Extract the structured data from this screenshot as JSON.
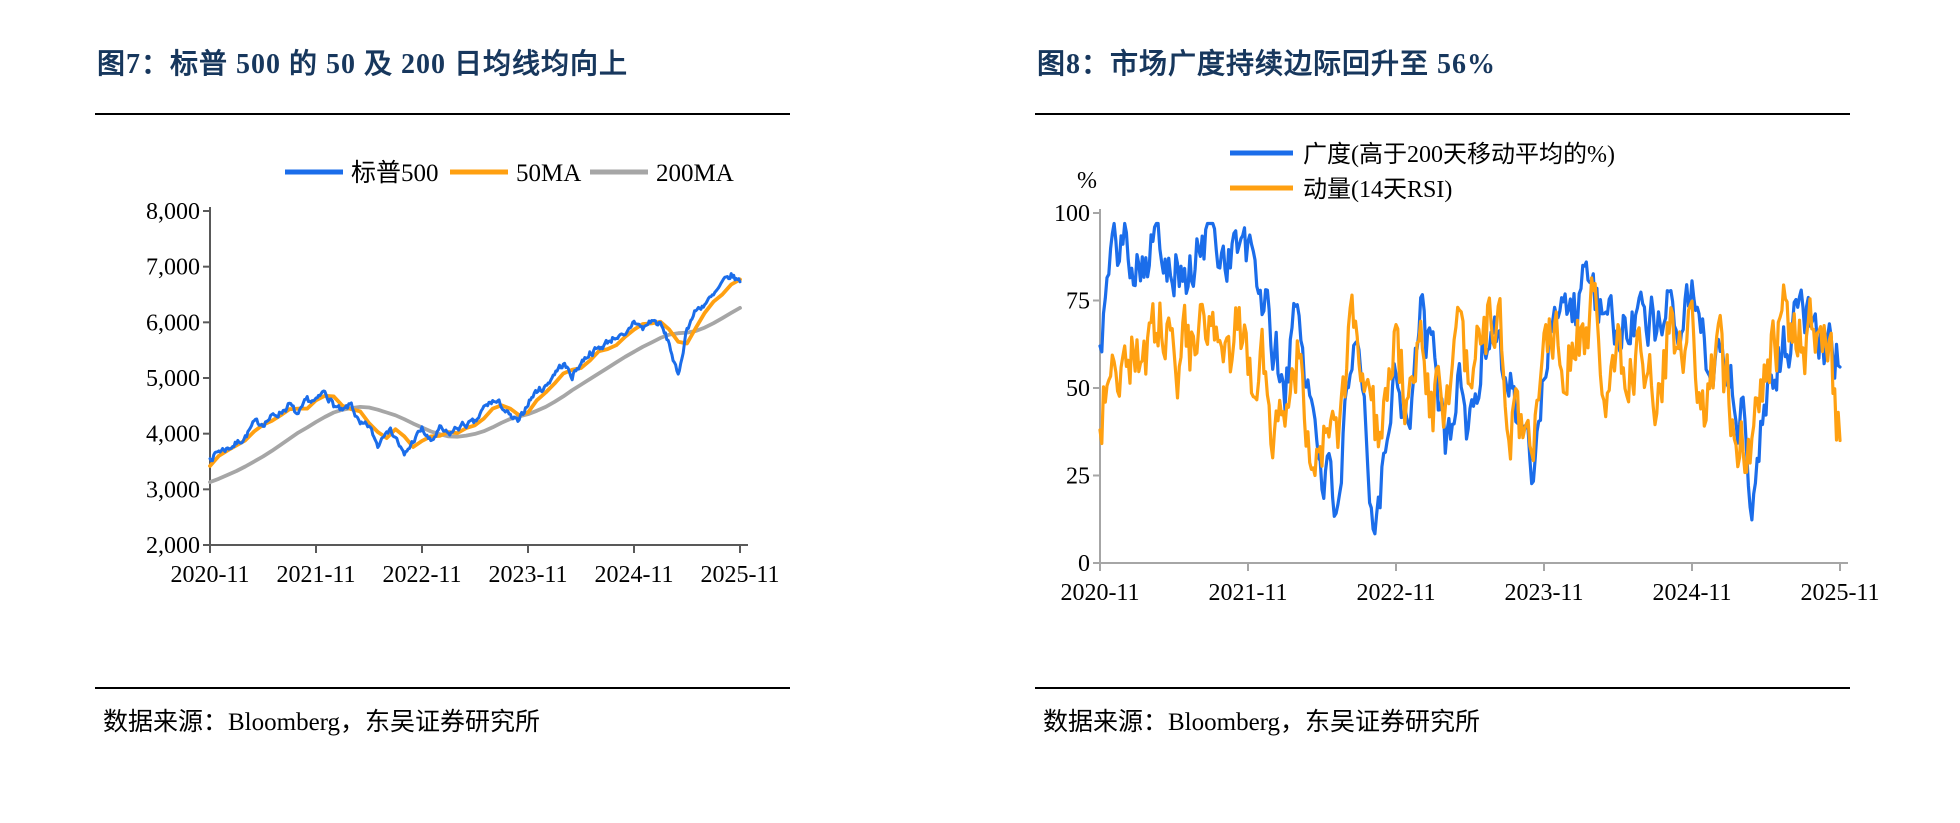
{
  "page": {
    "background": "#FFFFFF"
  },
  "figures": [
    {
      "id": "fig7",
      "title": "图7：标普 500 的 50 及 200 日均线均向上",
      "source": "数据来源：Bloomberg，东吴证券研究所"
    },
    {
      "id": "fig8",
      "title": "图8：市场广度持续边际回升至 56%",
      "source": "数据来源：Bloomberg，东吴证券研究所"
    }
  ],
  "colors": {
    "title_navy": "#17375D",
    "sp500_blue": "#1B6DEA",
    "ma50_orange": "#FFA011",
    "ma200_gray": "#A6A6A6",
    "breadth_blue": "#1B6DEA",
    "momentum_orange": "#FFA011",
    "axis_dark": "#595959",
    "axis_light": "#A6A6A6",
    "text_black": "#000000",
    "rule_black": "#000000"
  },
  "chart_data": [
    {
      "type": "line",
      "title": "图7：标普 500 的 50 及 200 日均线均向上",
      "x_start": "2020-11",
      "x_end": "2025-11",
      "x_frequency": "monthly",
      "x_tick_labels": [
        "2020-11",
        "2021-11",
        "2022-11",
        "2023-11",
        "2024-11",
        "2025-11"
      ],
      "y_tick_labels": [
        "2,000",
        "3,000",
        "4,000",
        "5,000",
        "6,000",
        "7,000",
        "8,000"
      ],
      "ylim": [
        2000,
        8000
      ],
      "grid": false,
      "legend_position": "top-center",
      "series": [
        {
          "name": "标普500",
          "color_key": "sp500_blue",
          "values": [
            3550,
            3695,
            3740,
            3825,
            3950,
            4180,
            4200,
            4300,
            4390,
            4520,
            4310,
            4600,
            4570,
            4766,
            4515,
            4375,
            4530,
            4130,
            4130,
            3785,
            4130,
            3955,
            3585,
            3870,
            4080,
            3840,
            4077,
            3970,
            4109,
            4169,
            4180,
            4450,
            4589,
            4508,
            4288,
            4194,
            4568,
            4770,
            4846,
            5096,
            5254,
            5036,
            5278,
            5460,
            5522,
            5648,
            5762,
            5705,
            6032,
            5882,
            6041,
            5955,
            5612,
            5000,
            5912,
            6205,
            6340,
            6460,
            6690,
            6840,
            6728
          ],
          "jitter": 110
        },
        {
          "name": "50MA",
          "color_key": "ma50_orange",
          "values": [
            3420,
            3600,
            3700,
            3790,
            3880,
            4040,
            4160,
            4230,
            4330,
            4440,
            4450,
            4450,
            4600,
            4680,
            4670,
            4500,
            4440,
            4400,
            4190,
            4030,
            3920,
            4080,
            3950,
            3760,
            3870,
            3950,
            3960,
            4030,
            4010,
            4100,
            4150,
            4270,
            4450,
            4510,
            4450,
            4330,
            4380,
            4600,
            4740,
            4900,
            5080,
            5150,
            5180,
            5310,
            5480,
            5520,
            5590,
            5740,
            5870,
            5970,
            5980,
            6010,
            5870,
            5650,
            5620,
            5900,
            6170,
            6370,
            6500,
            6680,
            6770
          ],
          "jitter": 0
        },
        {
          "name": "200MA",
          "color_key": "ma200_gray",
          "values": [
            3130,
            3190,
            3260,
            3330,
            3410,
            3500,
            3590,
            3690,
            3800,
            3910,
            4020,
            4110,
            4210,
            4300,
            4380,
            4430,
            4460,
            4480,
            4470,
            4430,
            4380,
            4330,
            4260,
            4180,
            4110,
            4040,
            3990,
            3950,
            3945,
            3965,
            3995,
            4045,
            4115,
            4195,
            4265,
            4310,
            4350,
            4410,
            4480,
            4570,
            4670,
            4780,
            4880,
            4980,
            5080,
            5180,
            5280,
            5380,
            5470,
            5560,
            5640,
            5720,
            5780,
            5805,
            5815,
            5845,
            5905,
            5985,
            6075,
            6170,
            6260
          ],
          "jitter": 0
        }
      ]
    },
    {
      "type": "line",
      "title": "图8：市场广度持续边际回升至 56%",
      "y_axis_unit": "%",
      "x_start": "2020-11",
      "x_end": "2025-11",
      "x_frequency": "monthly",
      "x_tick_labels": [
        "2020-11",
        "2021-11",
        "2022-11",
        "2023-11",
        "2024-11",
        "2025-11"
      ],
      "y_tick_labels": [
        "0",
        "25",
        "50",
        "75",
        "100"
      ],
      "ylim": [
        0,
        100
      ],
      "grid": false,
      "legend_position": "top-right",
      "series": [
        {
          "name": "广度(高于200天移动平均的%)",
          "color_key": "breadth_blue",
          "values": [
            62,
            91,
            92,
            90,
            91,
            93,
            89,
            80,
            87,
            96,
            89,
            92,
            86,
            80,
            62,
            50,
            74,
            48,
            30,
            16,
            40,
            58,
            14,
            30,
            60,
            40,
            68,
            55,
            35,
            50,
            38,
            60,
            72,
            55,
            40,
            25,
            55,
            80,
            72,
            75,
            82,
            60,
            70,
            62,
            78,
            66,
            78,
            75,
            78,
            58,
            62,
            58,
            42,
            19,
            50,
            62,
            66,
            70,
            72,
            65,
            56
          ],
          "jitter": 16
        },
        {
          "name": "动量(14天RSI)",
          "color_key": "momentum_orange",
          "values": [
            38,
            63,
            58,
            62,
            60,
            68,
            55,
            62,
            58,
            66,
            48,
            64,
            52,
            62,
            42,
            44,
            62,
            40,
            34,
            30,
            58,
            64,
            28,
            48,
            62,
            42,
            66,
            45,
            48,
            58,
            46,
            68,
            70,
            48,
            38,
            32,
            65,
            72,
            60,
            68,
            72,
            42,
            62,
            58,
            62,
            52,
            64,
            58,
            66,
            45,
            55,
            48,
            40,
            28,
            62,
            68,
            65,
            60,
            70,
            62,
            35
          ],
          "jitter": 20
        }
      ]
    }
  ]
}
